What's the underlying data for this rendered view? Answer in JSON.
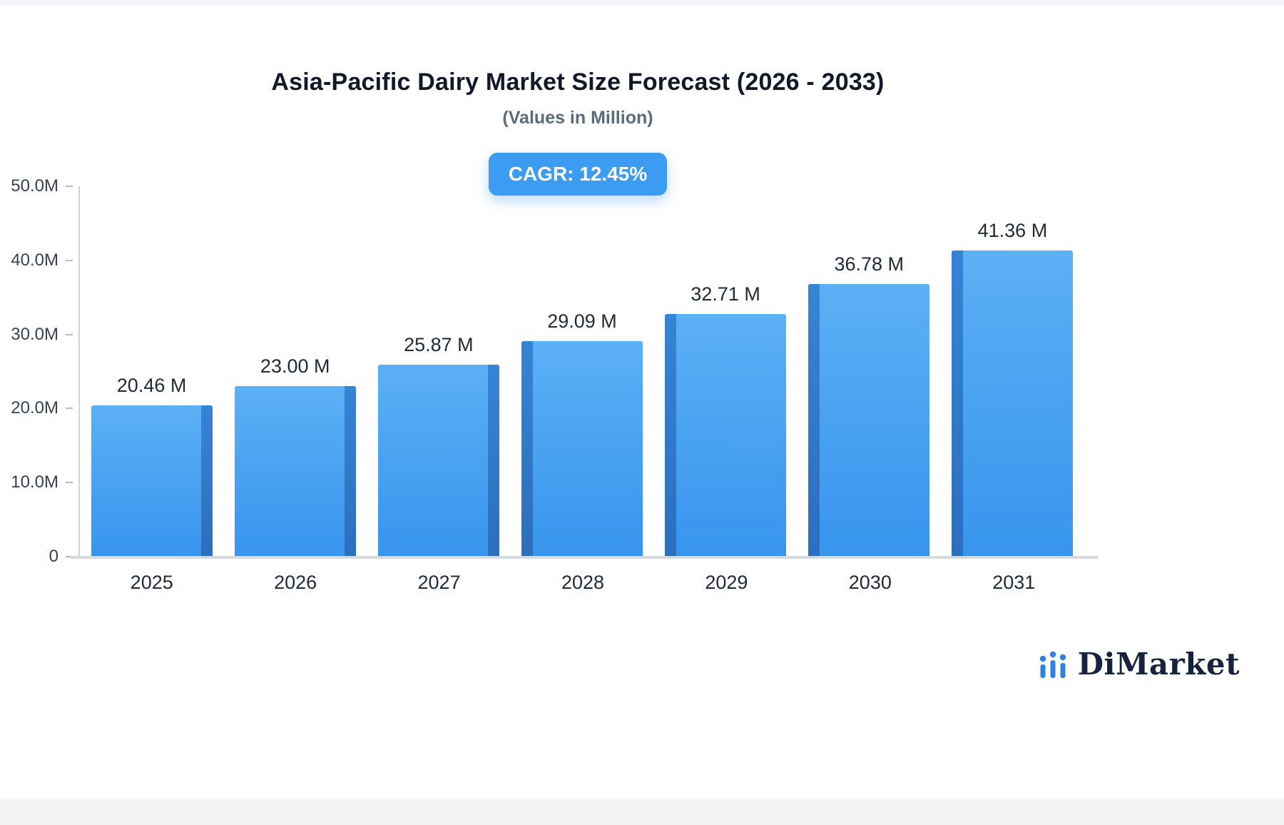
{
  "header": {
    "title": "Asia-Pacific Dairy Market Size Forecast (2026 - 2033)",
    "subtitle": "(Values in Million)"
  },
  "badge": {
    "label": "CAGR: 12.45%"
  },
  "logo": {
    "text": "DiMarket",
    "icon": "mini-bar-chart-icon"
  },
  "colors": {
    "accent": "#3b9cf1",
    "bar_top": "#5cb0f4",
    "bar_bottom": "#3795ee",
    "bar_shade": "#2e7cc9",
    "logo_navy": "#16233e",
    "text_dark": "#1f2937"
  },
  "chart_data": {
    "type": "bar",
    "title": "Asia-Pacific Dairy Market Size Forecast (2026 - 2033)",
    "subtitle": "(Values in Million)",
    "categories": [
      "2025",
      "2026",
      "2027",
      "2028",
      "2029",
      "2030",
      "2031"
    ],
    "values": [
      20.46,
      23.0,
      25.87,
      29.09,
      32.71,
      36.78,
      41.36
    ],
    "value_labels": [
      "20.46 M",
      "23.00 M",
      "25.87 M",
      "29.09 M",
      "32.71 M",
      "36.78 M",
      "41.36 M"
    ],
    "xlabel": "",
    "ylabel": "",
    "ylim": [
      0,
      50
    ],
    "ytick_labels": [
      "0",
      "10.0M",
      "20.0M",
      "30.0M",
      "40.0M",
      "50.0M"
    ],
    "grid": false,
    "legend": "none",
    "annotation": "CAGR: 12.45%"
  }
}
